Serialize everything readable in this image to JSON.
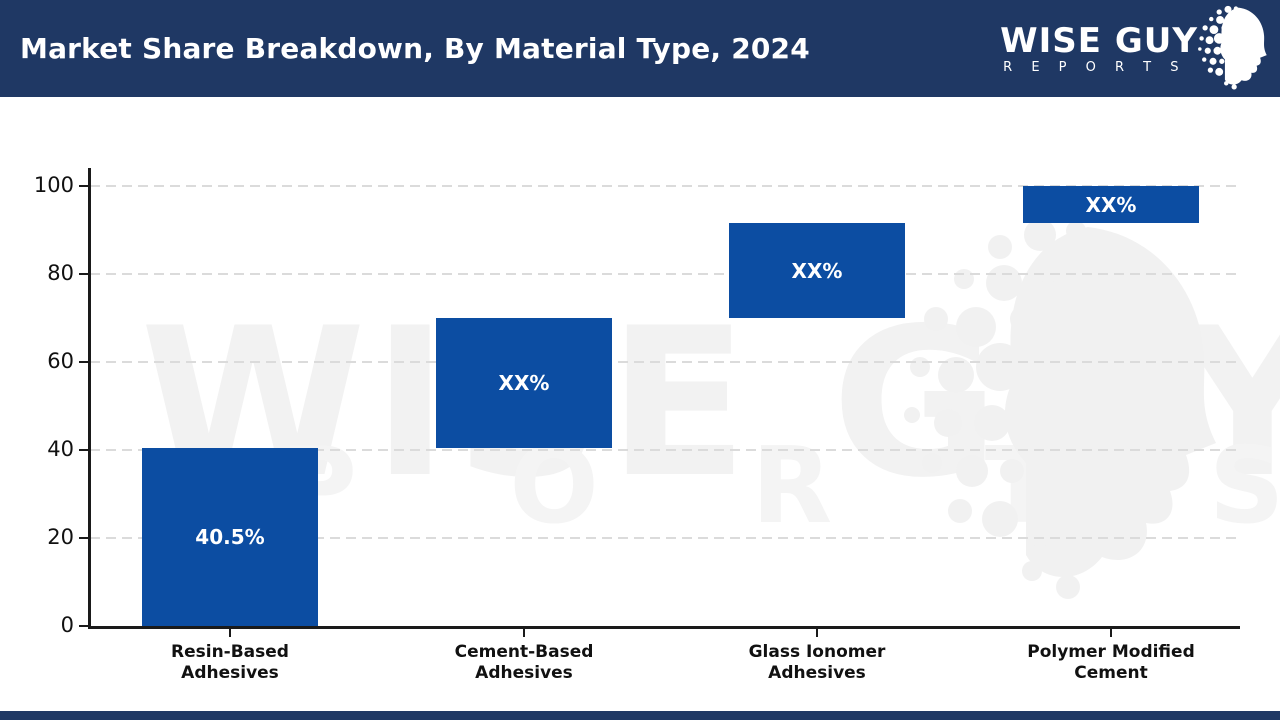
{
  "header": {
    "title": "Market Share Breakdown, By Material Type, 2024",
    "logo": {
      "wordmark": "WISE GUY",
      "subtext": "R E P O R T S"
    }
  },
  "watermark": {
    "line1": "WISE GUY",
    "line2": "P O R T S"
  },
  "colors": {
    "header_bg": "#1F3864",
    "footer_bg": "#1F3864",
    "bar": "#0C4DA2",
    "bar_label_text": "#FFFFFF",
    "axis": "#1A1A1A",
    "gridline": "#DBDBDB",
    "watermark": "#F2F2F2",
    "title_text": "#FFFFFF"
  },
  "chart_data": {
    "type": "bar",
    "subtype": "waterfall",
    "title": "Market Share Breakdown, By Material Type, 2024",
    "xlabel": "",
    "ylabel": "",
    "ylim": [
      0,
      105
    ],
    "yticks": [
      0,
      20,
      40,
      60,
      80,
      100
    ],
    "grid": "horizontal-dashed",
    "legend": "none",
    "categories": [
      "Resin-Based\nAdhesives",
      "Cement-Based\nAdhesives",
      "Glass Ionomer\nAdhesives",
      "Polymer Modified\nCement"
    ],
    "segments": [
      {
        "category": "Resin-Based Adhesives",
        "start": 0,
        "end": 40.5,
        "label": "40.5%"
      },
      {
        "category": "Cement-Based Adhesives",
        "start": 40.5,
        "end": 70,
        "label": "XX%"
      },
      {
        "category": "Glass Ionomer Adhesives",
        "start": 70,
        "end": 91.5,
        "label": "XX%"
      },
      {
        "category": "Polymer Modified Cement",
        "start": 91.5,
        "end": 100,
        "label": "XX%"
      }
    ]
  }
}
